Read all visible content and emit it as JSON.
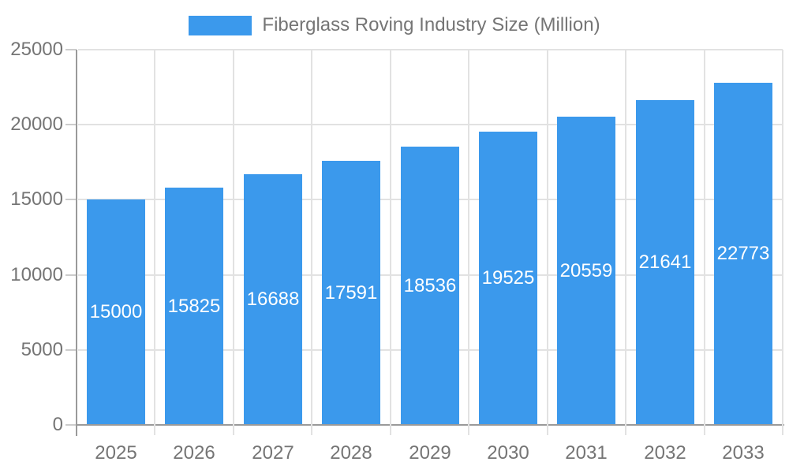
{
  "legend": {
    "label": "Fiberglass Roving Industry Size (Million)"
  },
  "colors": {
    "bar": "#3B99EC",
    "bar_value_text": "#FFFFFF",
    "axis_text": "#757575",
    "axis_line": "#9A9A9A",
    "grid_line": "#E2E2E2",
    "tick_mark": "#CCCCCC",
    "background": "#FFFFFF"
  },
  "chart_data": {
    "type": "bar",
    "title": "Fiberglass Roving Industry Size (Million)",
    "categories": [
      "2025",
      "2026",
      "2027",
      "2028",
      "2029",
      "2030",
      "2031",
      "2032",
      "2033"
    ],
    "values": [
      15000,
      15825,
      16688,
      17591,
      18536,
      19525,
      20559,
      21641,
      22773
    ],
    "bar_labels": [
      "15000",
      "15825",
      "16688",
      "17591",
      "18536",
      "19525",
      "20559",
      "21641",
      "22773"
    ],
    "xlabel": "",
    "ylabel": "",
    "ylim": [
      0,
      25000
    ],
    "yticks": [
      0,
      5000,
      10000,
      15000,
      20000,
      25000
    ],
    "ytick_labels": [
      "0",
      "5000",
      "10000",
      "15000",
      "20000",
      "25000"
    ],
    "grid": "on",
    "legend_position": "top",
    "bar_label_position": "inside-center"
  }
}
